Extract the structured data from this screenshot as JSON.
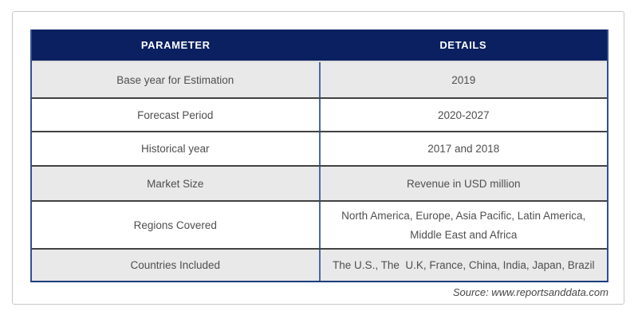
{
  "table": {
    "headers": [
      {
        "label": "PARAMETER"
      },
      {
        "label": "DETAILS"
      }
    ],
    "rows": [
      {
        "parameter": "Base year for Estimation",
        "details": [
          "2019"
        ]
      },
      {
        "parameter": "Forecast Period",
        "details": [
          "2020-2027"
        ]
      },
      {
        "parameter": "Historical year",
        "details": [
          "2017 and 2018"
        ]
      },
      {
        "parameter": "Market Size",
        "details": [
          "Revenue in USD million"
        ]
      },
      {
        "parameter": "Regions Covered",
        "details": [
          "North America, Europe, Asia Pacific, Latin America,",
          "Middle East and Africa"
        ]
      },
      {
        "parameter": "Countries Included",
        "details": [
          "The U.S., The  U.K, France, China, India, Japan, Brazil"
        ]
      }
    ]
  },
  "footer": {
    "source_label": "Source: www.reportsanddata.com"
  },
  "colors": {
    "header_bg": "#0a2060",
    "header_text": "#ffffff",
    "shaded_row_bg": "#e9e9e9",
    "row_bg": "#ffffff",
    "body_text": "#4f4f4f",
    "border_blue": "#31518f",
    "border_dark": "#424242",
    "card_border": "#c7c7c7"
  }
}
